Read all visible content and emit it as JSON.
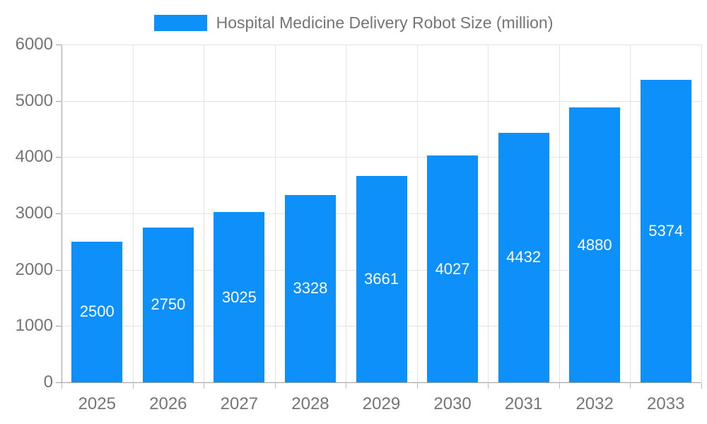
{
  "legend": {
    "label": "Hospital Medicine Delivery Robot Size (million)"
  },
  "colors": {
    "bar": "#0e90fa",
    "axis_text": "#757575",
    "bar_label_text": "#ffffff",
    "grid": "#e3e3e3",
    "axis_line": "#9e9e9e"
  },
  "chart_data": {
    "type": "bar",
    "title": "",
    "xlabel": "",
    "ylabel": "",
    "categories": [
      "2025",
      "2026",
      "2027",
      "2028",
      "2029",
      "2030",
      "2031",
      "2032",
      "2033"
    ],
    "series": [
      {
        "name": "Hospital Medicine Delivery Robot Size (million)",
        "values": [
          2500,
          2750,
          3025,
          3328,
          3661,
          4027,
          4432,
          4880,
          5374
        ]
      }
    ],
    "bar_value_labels": [
      2500,
      2750,
      3025,
      3328,
      3661,
      4027,
      4432,
      4880,
      5374
    ],
    "ylim": [
      0,
      6000
    ],
    "yticks": [
      0,
      1000,
      2000,
      3000,
      4000,
      5000,
      6000
    ],
    "grid": true,
    "legend_position": "top"
  }
}
